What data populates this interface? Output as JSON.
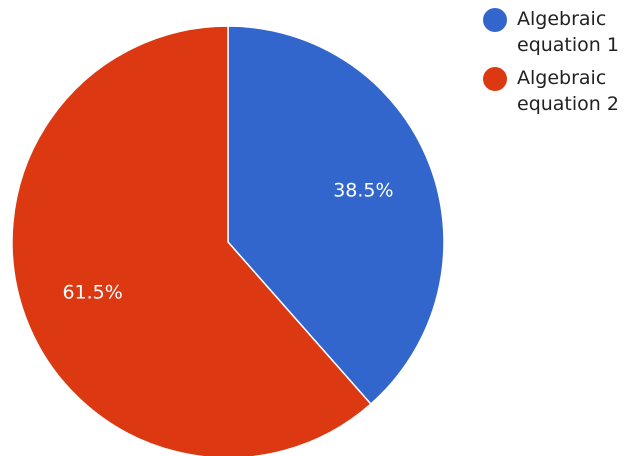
{
  "chart_data": {
    "type": "pie",
    "labels": [
      "Algebraic equation 1",
      "Algebraic equation 2"
    ],
    "values": [
      38.5,
      61.5
    ],
    "value_labels": [
      "38.5%",
      "61.5%"
    ],
    "colors": [
      "#3366cc",
      "#dc3912"
    ],
    "start_angle": "top (12 o'clock)",
    "direction": "clockwise",
    "legend_placement": "right"
  }
}
